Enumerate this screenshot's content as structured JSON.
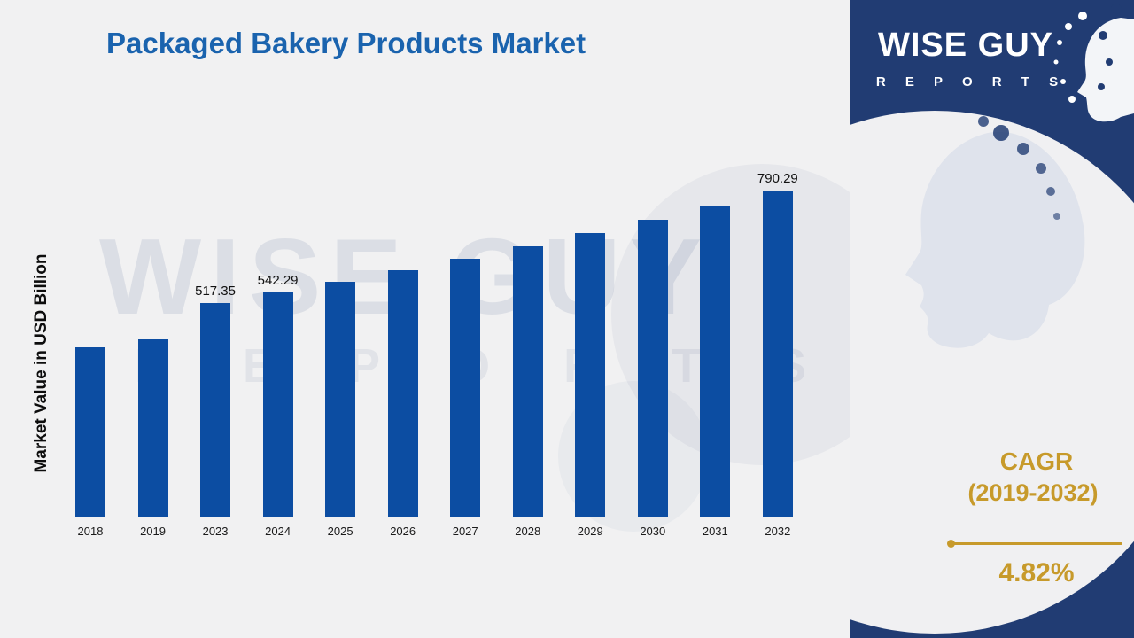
{
  "title": "Packaged Bakery Products Market",
  "y_axis_label": "Market Value in USD Billion",
  "watermark": {
    "line1": "WISE GUY",
    "line2": "R E P O R T S"
  },
  "logo": {
    "name": "WISE GUY",
    "sub": "R E P O R T S"
  },
  "cagr": {
    "label": "CAGR",
    "range": "(2019-2032)",
    "value": "4.82%"
  },
  "colors": {
    "title_blue": "#1a63ae",
    "bar_blue": "#0c4da2",
    "panel_navy": "#213c73",
    "gold": "#c79a2b",
    "background": "#f1f1f2"
  },
  "chart_data": {
    "type": "bar",
    "title": "Packaged Bakery Products Market",
    "xlabel": "",
    "ylabel": "Market Value in USD Billion",
    "unit": "USD Billion",
    "categories": [
      "2018",
      "2019",
      "2023",
      "2024",
      "2025",
      "2026",
      "2027",
      "2028",
      "2029",
      "2030",
      "2031",
      "2032"
    ],
    "values": [
      409.1,
      428.8,
      517.35,
      542.29,
      568.4,
      595.8,
      624.6,
      654.7,
      686.2,
      719.3,
      754.0,
      790.29
    ],
    "data_labels": [
      "",
      "",
      "517.35",
      "542.29",
      "",
      "",
      "",
      "",
      "",
      "",
      "",
      "790.29"
    ],
    "ylim": [
      0,
      880
    ],
    "grid": false,
    "legend": "none",
    "bar_color": "#0c4da2",
    "cagr_pct": 4.82,
    "cagr_range": "2019-2032"
  }
}
